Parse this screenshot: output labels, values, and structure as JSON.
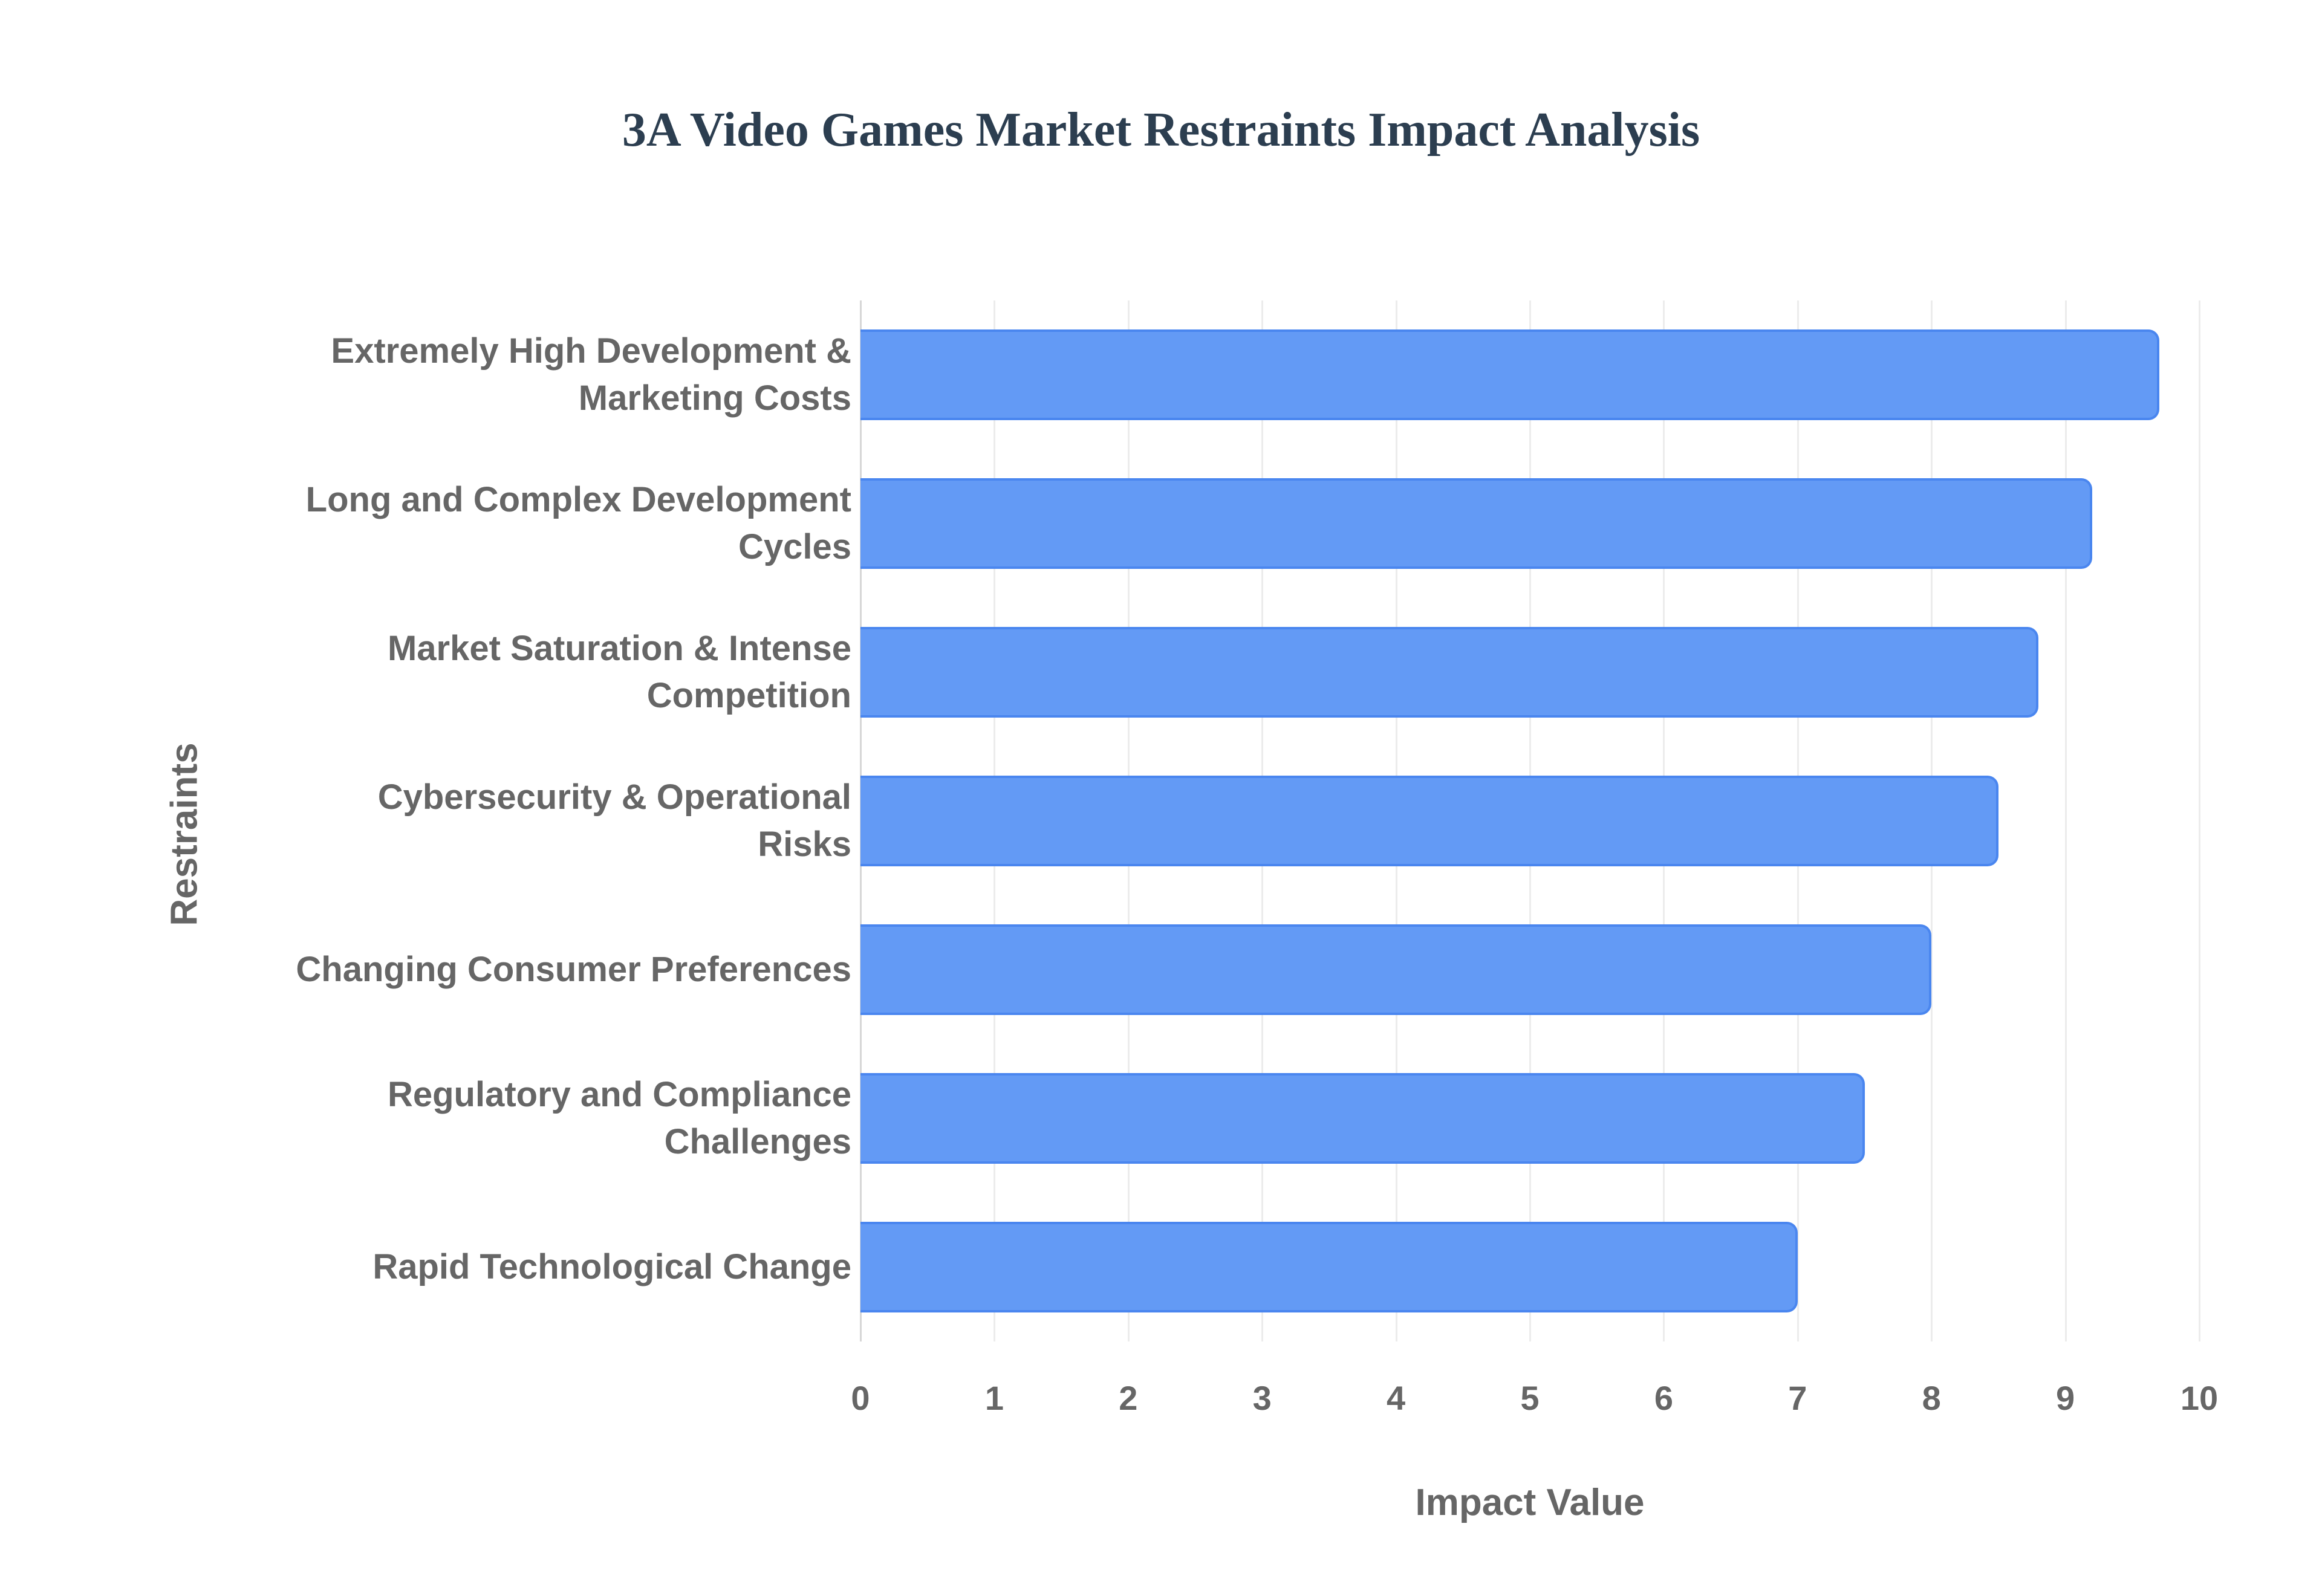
{
  "chart_data": {
    "type": "bar",
    "orientation": "horizontal",
    "title": "3A Video Games Market Restraints Impact Analysis",
    "xlabel": "Impact Value",
    "ylabel": "Restraints",
    "xlim": [
      0,
      10
    ],
    "x_ticks": [
      "0",
      "1",
      "2",
      "3",
      "4",
      "5",
      "6",
      "7",
      "8",
      "9",
      "10"
    ],
    "grid": true,
    "bar_color": "#639af5",
    "categories": [
      "Extremely High Development & Marketing Costs",
      "Long and Complex Development Cycles",
      "Market Saturation & Intense Competition",
      "Cybersecurity & Operational Risks",
      "Changing Consumer Preferences",
      "Regulatory and Compliance Challenges",
      "Rapid Technological Change"
    ],
    "category_lines": [
      [
        "Extremely High Development &",
        "Marketing Costs"
      ],
      [
        "Long and Complex Development",
        "Cycles"
      ],
      [
        "Market Saturation & Intense",
        "Competition"
      ],
      [
        "Cybersecurity & Operational",
        "Risks"
      ],
      [
        "Changing Consumer Preferences"
      ],
      [
        "Regulatory and Compliance",
        "Challenges"
      ],
      [
        "Rapid Technological Change"
      ]
    ],
    "values": [
      9.7,
      9.2,
      8.8,
      8.5,
      8.0,
      7.5,
      7.0
    ]
  }
}
